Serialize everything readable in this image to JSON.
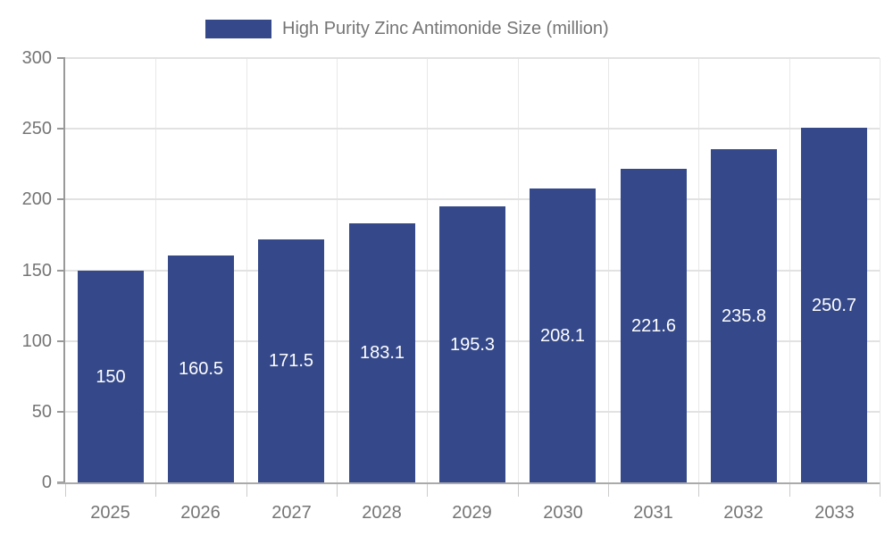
{
  "legend": {
    "label": "High Purity Zinc Antimonide Size (million)"
  },
  "colors": {
    "bar": "#35498a",
    "value_label": "#ffffff",
    "axis_text": "#757575",
    "legend_text": "#757575",
    "grid_line": "#e2e2e2",
    "vertical_grid_line": "#e8e8e8",
    "y_axis_line": "#999999",
    "x_axis_line": "#aaaaaa",
    "tick_line": "#cccccc",
    "background": "#ffffff"
  },
  "chart_data": {
    "type": "bar",
    "title": "High Purity Zinc Antimonide Size (million)",
    "legend_entries": [
      "High Purity Zinc Antimonide Size (million)"
    ],
    "legend_position": "top",
    "categories": [
      "2025",
      "2026",
      "2027",
      "2028",
      "2029",
      "2030",
      "2031",
      "2032",
      "2033"
    ],
    "values": [
      150,
      160.5,
      171.5,
      183.1,
      195.3,
      208.1,
      221.6,
      235.8,
      250.7
    ],
    "value_labels": [
      "150",
      "160.5",
      "171.5",
      "183.1",
      "195.3",
      "208.1",
      "221.6",
      "235.8",
      "250.7"
    ],
    "xlabel": "",
    "ylabel": "",
    "ylim": [
      0,
      300
    ],
    "yticks": [
      0,
      50,
      100,
      150,
      200,
      250,
      300
    ],
    "grid": true
  }
}
